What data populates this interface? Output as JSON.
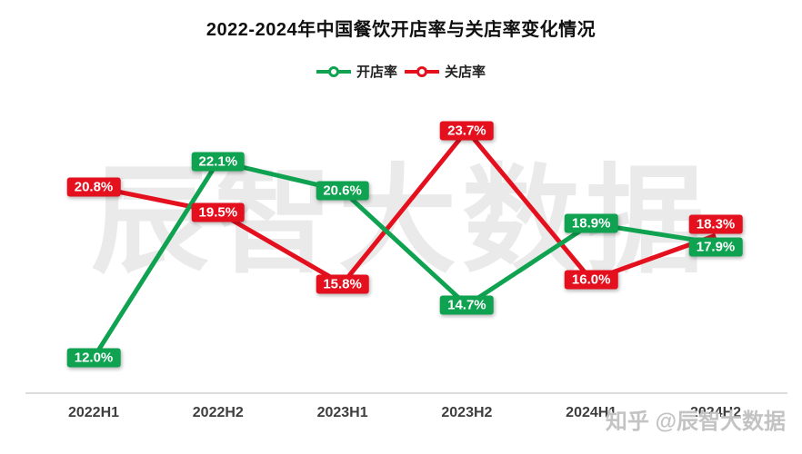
{
  "title": "2022-2024年中国餐饮开店率与关店率变化情况",
  "watermarks": {
    "center": "辰智大数据",
    "bottom_right": "知乎 @辰智大数据"
  },
  "chart_data": {
    "type": "line",
    "title": "2022-2024年中国餐饮开店率与关店率变化情况",
    "categories": [
      "2022H1",
      "2022H2",
      "2023H1",
      "2023H2",
      "2024H1",
      "2024H2"
    ],
    "series": [
      {
        "name": "开店率",
        "color": "#0fa251",
        "values": [
          12.0,
          22.1,
          20.6,
          14.7,
          18.9,
          17.9
        ]
      },
      {
        "name": "关店率",
        "color": "#e4101e",
        "values": [
          20.8,
          19.5,
          15.8,
          23.7,
          16.0,
          18.3
        ]
      }
    ],
    "data_labels": true,
    "value_suffix": "%",
    "value_decimals": 1,
    "xlabel": "",
    "ylabel": "",
    "ylim": [
      10,
      26
    ],
    "grid": false,
    "legend_position": "top-center",
    "marker": "open-circle"
  },
  "colors": {
    "open_rate_green": "#0fa251",
    "close_rate_red": "#e4101e",
    "axis_line": "#dcdcdc",
    "watermark_gray": "#eaeaea"
  }
}
